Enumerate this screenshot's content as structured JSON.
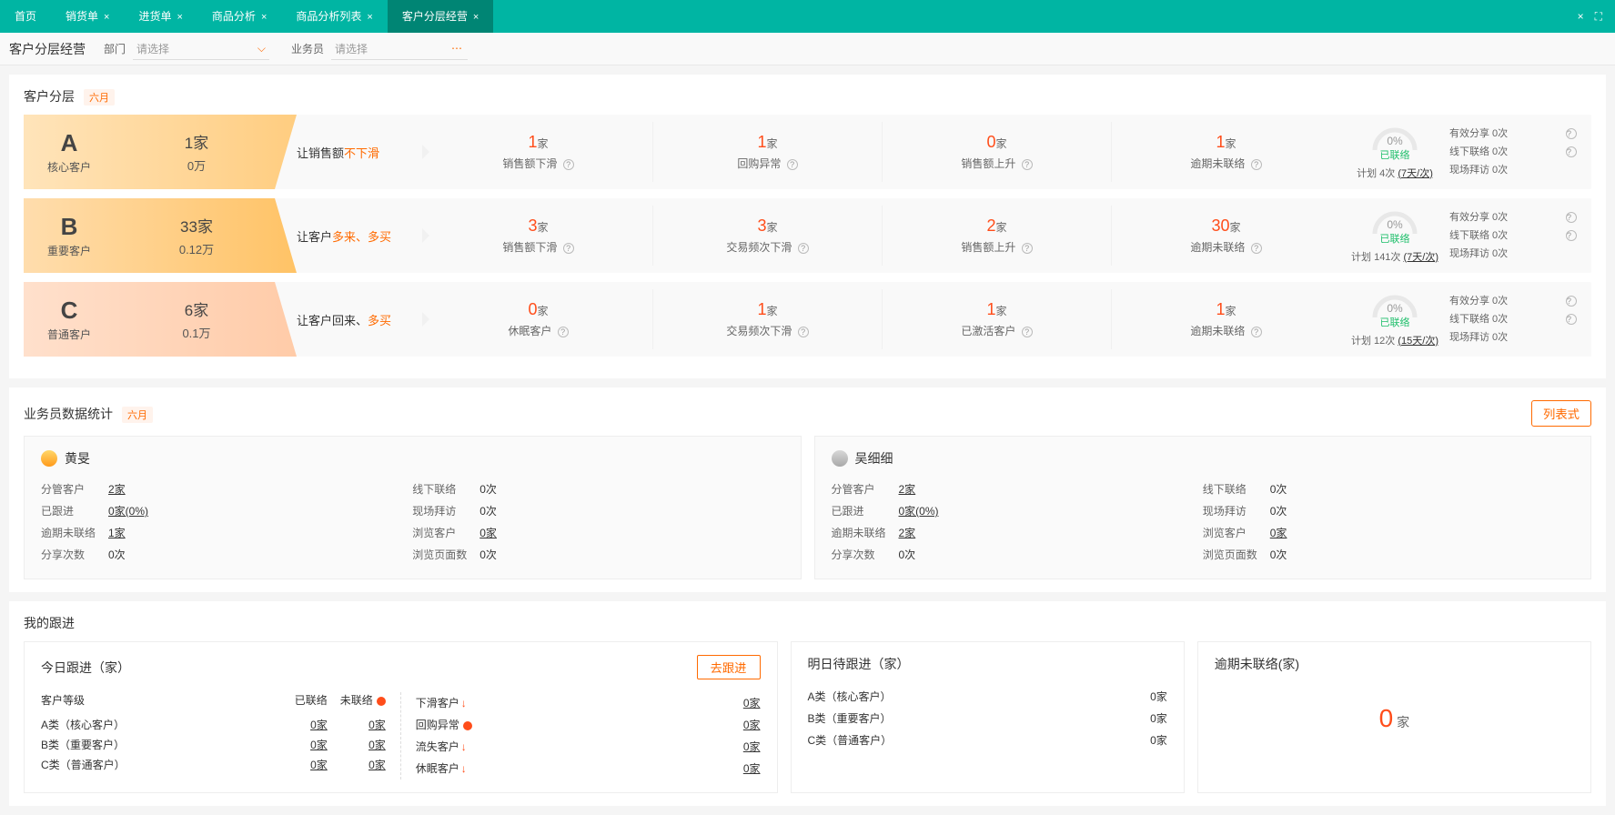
{
  "tabs": {
    "items": [
      {
        "label": "首页",
        "closable": false
      },
      {
        "label": "销货单",
        "closable": true
      },
      {
        "label": "进货单",
        "closable": true
      },
      {
        "label": "商品分析",
        "closable": true
      },
      {
        "label": "商品分析列表",
        "closable": true
      },
      {
        "label": "客户分层经营",
        "closable": true
      }
    ],
    "activeIndex": 5
  },
  "filter": {
    "title": "客户分层经营",
    "dept_label": "部门",
    "dept_placeholder": "请选择",
    "sales_label": "业务员",
    "sales_placeholder": "请选择"
  },
  "tiers": {
    "section_title": "客户分层",
    "month_chip": "六月",
    "rows": [
      {
        "letter": "A",
        "name": "核心客户",
        "count": "1",
        "count_unit": "家",
        "amount": "0万",
        "head_bg_left": "#ffe4ba",
        "head_bg_right": "#ffcd80",
        "slogan_pre": "让销售额",
        "slogan_hl": "不下滑",
        "metrics": [
          {
            "value": "1",
            "unit": "家",
            "label": "销售额下滑"
          },
          {
            "value": "1",
            "unit": "家",
            "label": "回购异常"
          },
          {
            "value": "0",
            "unit": "家",
            "label": "销售额上升"
          },
          {
            "value": "1",
            "unit": "家",
            "label": "逾期未联络"
          }
        ],
        "gauge": {
          "pct": "0%",
          "status": "已联络",
          "plan_text": "计划 4次 ",
          "plan_freq": "(7天/次)"
        },
        "side": [
          {
            "label": "有效分享",
            "value": "0次",
            "help": true
          },
          {
            "label": "线下联络",
            "value": "0次",
            "help": true
          },
          {
            "label": "现场拜访",
            "value": "0次",
            "help": false
          }
        ]
      },
      {
        "letter": "B",
        "name": "重要客户",
        "count": "33",
        "count_unit": "家",
        "amount": "0.12万",
        "head_bg_left": "#ffddad",
        "head_bg_right": "#ffc366",
        "slogan_pre": "让客户",
        "slogan_hl": "多来、多买",
        "metrics": [
          {
            "value": "3",
            "unit": "家",
            "label": "销售额下滑"
          },
          {
            "value": "3",
            "unit": "家",
            "label": "交易频次下滑"
          },
          {
            "value": "2",
            "unit": "家",
            "label": "销售额上升"
          },
          {
            "value": "30",
            "unit": "家",
            "label": "逾期未联络"
          }
        ],
        "gauge": {
          "pct": "0%",
          "status": "已联络",
          "plan_text": "计划 141次 ",
          "plan_freq": "(7天/次)"
        },
        "side": [
          {
            "label": "有效分享",
            "value": "0次",
            "help": true
          },
          {
            "label": "线下联络",
            "value": "0次",
            "help": true
          },
          {
            "label": "现场拜访",
            "value": "0次",
            "help": false
          }
        ]
      },
      {
        "letter": "C",
        "name": "普通客户",
        "count": "6",
        "count_unit": "家",
        "amount": "0.1万",
        "head_bg_left": "#ffe0cc",
        "head_bg_right": "#ffcba8",
        "slogan_pre": "让客户回来、",
        "slogan_hl": "多买",
        "metrics": [
          {
            "value": "0",
            "unit": "家",
            "label": "休眠客户"
          },
          {
            "value": "1",
            "unit": "家",
            "label": "交易频次下滑"
          },
          {
            "value": "1",
            "unit": "家",
            "label": "已激活客户"
          },
          {
            "value": "1",
            "unit": "家",
            "label": "逾期未联络"
          }
        ],
        "gauge": {
          "pct": "0%",
          "status": "已联络",
          "plan_text": "计划 12次 ",
          "plan_freq": "(15天/次)"
        },
        "side": [
          {
            "label": "有效分享",
            "value": "0次",
            "help": true
          },
          {
            "label": "线下联络",
            "value": "0次",
            "help": true
          },
          {
            "label": "现场拜访",
            "value": "0次",
            "help": false
          }
        ]
      }
    ]
  },
  "sales_stats": {
    "section_title": "业务员数据统计",
    "month_chip": "六月",
    "list_btn": "列表式",
    "cards": [
      {
        "name": "黄旻",
        "medal": "gold",
        "left": [
          {
            "k": "分管客户",
            "v": "2家",
            "link": true
          },
          {
            "k": "已跟进",
            "v": "0家(0%)",
            "link": true
          },
          {
            "k": "逾期未联络",
            "v": "1家",
            "link": true
          },
          {
            "k": "分享次数",
            "v": "0次",
            "link": false
          }
        ],
        "right": [
          {
            "k": "线下联络",
            "v": "0次",
            "link": false
          },
          {
            "k": "现场拜访",
            "v": "0次",
            "link": false
          },
          {
            "k": "浏览客户",
            "v": "0家",
            "link": true
          },
          {
            "k": "浏览页面数",
            "v": "0次",
            "link": false
          }
        ]
      },
      {
        "name": "吴细细",
        "medal": "silver",
        "left": [
          {
            "k": "分管客户",
            "v": "2家",
            "link": true
          },
          {
            "k": "已跟进",
            "v": "0家(0%)",
            "link": true
          },
          {
            "k": "逾期未联络",
            "v": "2家",
            "link": true
          },
          {
            "k": "分享次数",
            "v": "0次",
            "link": false
          }
        ],
        "right": [
          {
            "k": "线下联络",
            "v": "0次",
            "link": false
          },
          {
            "k": "现场拜访",
            "v": "0次",
            "link": false
          },
          {
            "k": "浏览客户",
            "v": "0家",
            "link": true
          },
          {
            "k": "浏览页面数",
            "v": "0次",
            "link": false
          }
        ]
      }
    ]
  },
  "followup": {
    "section_title": "我的跟进",
    "today": {
      "title": "今日跟进（家）",
      "go_btn": "去跟进",
      "left_headers": {
        "c1": "客户等级",
        "c2": "已联络",
        "c3": "未联络"
      },
      "left_rows": [
        {
          "c1": "A类（核心客户）",
          "c2": "0家",
          "c3": "0家"
        },
        {
          "c1": "B类（重要客户）",
          "c2": "0家",
          "c3": "0家"
        },
        {
          "c1": "C类（普通客户）",
          "c2": "0家",
          "c3": "0家"
        }
      ],
      "right_rows": [
        {
          "label": "下滑客户",
          "value": "0家"
        },
        {
          "label": "回购异常",
          "value": "0家"
        },
        {
          "label": "流失客户",
          "value": "0家"
        },
        {
          "label": "休眠客户",
          "value": "0家"
        }
      ]
    },
    "tomorrow": {
      "title": "明日待跟进（家）",
      "rows": [
        {
          "label": "A类（核心客户）",
          "value": "0家"
        },
        {
          "label": "B类（重要客户）",
          "value": "0家"
        },
        {
          "label": "C类（普通客户）",
          "value": "0家"
        }
      ]
    },
    "overdue": {
      "title": "逾期未联络(家)",
      "value": "0",
      "unit": " 家"
    }
  },
  "colors": {
    "primary": "#00b5a3",
    "accent": "#ff6a00",
    "metric": "#ff4d1a",
    "status_green": "#1fbf6b"
  }
}
